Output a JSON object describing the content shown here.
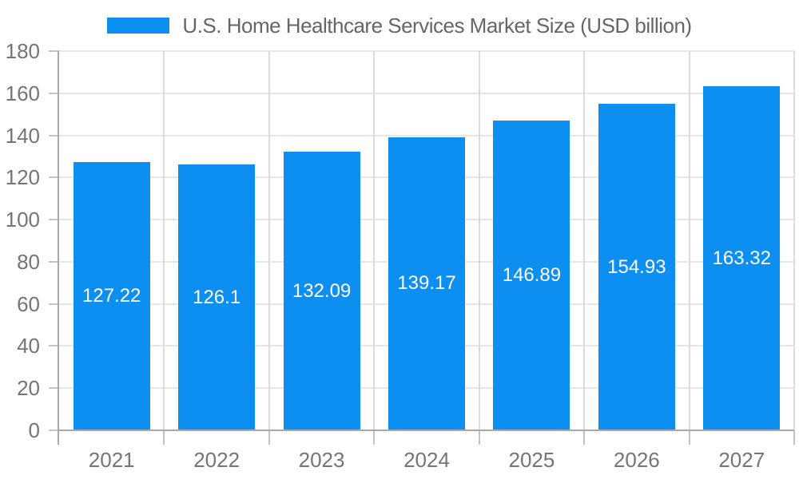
{
  "chart_data": {
    "type": "bar",
    "title": "U.S. Home Healthcare Services Market Size (USD billion)",
    "categories": [
      "2021",
      "2022",
      "2023",
      "2024",
      "2025",
      "2026",
      "2027"
    ],
    "values": [
      127.22,
      126.1,
      132.09,
      139.17,
      146.89,
      154.93,
      163.32
    ],
    "value_labels": [
      "127.22",
      "126.1",
      "132.09",
      "139.17",
      "146.89",
      "154.93",
      "163.32"
    ],
    "xlabel": "",
    "ylabel": "",
    "ylim": [
      0,
      180
    ],
    "yticks": [
      0,
      20,
      40,
      60,
      80,
      100,
      120,
      140,
      160,
      180
    ],
    "grid": true,
    "legend_position": "top",
    "bar_label_position": "inside-middle"
  },
  "colors": {
    "bar": "#0d8ff2",
    "bar_label": "#ffffff",
    "axis_line": "#a9a9a9",
    "gridline_h": "#e6e6e6",
    "gridline_v": "#dcdcdc",
    "tick": "#c4c4c4",
    "tick_label": "#757575",
    "title": "#666666",
    "background": "#ffffff"
  }
}
